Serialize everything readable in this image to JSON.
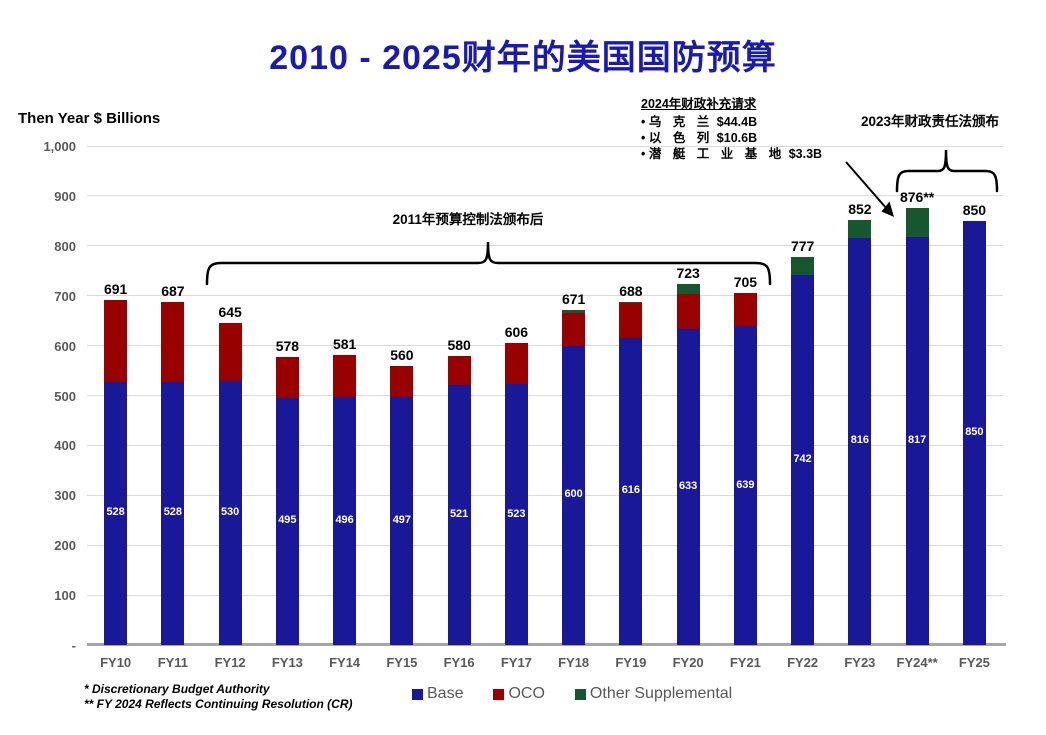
{
  "title": "2010 - 2025财年的美国国防预算",
  "y_axis_title": "Then Year $ Billions",
  "colors": {
    "title": "#1a1ab2",
    "base": "#181899",
    "oco": "#990000",
    "supplemental": "#17572f",
    "grid": "#d9d9d9",
    "axis": "#a6a6a6",
    "tick_text": "#595959"
  },
  "annotations": {
    "supplemental_2024": {
      "title": "2024年财政补充请求",
      "bullet": "•",
      "items": [
        {
          "label": "乌 克 兰",
          "value": "$44.4B"
        },
        {
          "label": "以 色 列",
          "value": "$10.6B"
        },
        {
          "label": "潜 艇 工 业 基 地",
          "value": "$3.3B"
        }
      ]
    },
    "fra_2023": "2023年财政责任法颁布",
    "bca_2011": "2011年预算控制法颁布后"
  },
  "footnotes": [
    "* Discretionary Budget Authority",
    "** FY 2024 Reflects Continuing Resolution (CR)"
  ],
  "legend": [
    {
      "label": "Base",
      "color": "#181899"
    },
    {
      "label": "OCO",
      "color": "#990000"
    },
    {
      "label": "Other Supplemental",
      "color": "#17572f"
    }
  ],
  "chart_data": {
    "type": "bar",
    "stacked": true,
    "title": "2010 - 2025财年的美国国防预算",
    "ylabel": "Then Year $ Billions",
    "ylim": [
      0,
      1000
    ],
    "grid": true,
    "legend_position": "bottom",
    "categories": [
      "FY10",
      "FY11",
      "FY12",
      "FY13",
      "FY14",
      "FY15",
      "FY16",
      "FY17",
      "FY18",
      "FY19",
      "FY20",
      "FY21",
      "FY22",
      "FY23",
      "FY24**",
      "FY25"
    ],
    "series": [
      {
        "name": "Base",
        "color": "#181899",
        "values": [
          528,
          528,
          530,
          495,
          496,
          497,
          521,
          523,
          600,
          616,
          633,
          639,
          742,
          816,
          817,
          850
        ]
      },
      {
        "name": "OCO",
        "color": "#990000",
        "values": [
          163,
          159,
          115,
          83,
          85,
          63,
          59,
          83,
          65,
          69,
          71,
          66,
          0,
          0,
          0,
          0
        ]
      },
      {
        "name": "Other Supplemental",
        "color": "#17572f",
        "values": [
          0,
          0,
          0,
          0,
          0,
          0,
          0,
          0,
          6,
          3,
          19,
          0,
          35,
          36,
          59,
          0
        ]
      }
    ],
    "total_labels": [
      "691",
      "687",
      "645",
      "578",
      "581",
      "560",
      "580",
      "606",
      "671",
      "688",
      "723",
      "705",
      "777",
      "852",
      "876**",
      "850"
    ],
    "base_labels": [
      "528",
      "528",
      "530",
      "495",
      "496",
      "497",
      "521",
      "523",
      "600",
      "616",
      "633",
      "639",
      "742",
      "816",
      "817",
      "850"
    ],
    "y_ticks": [
      {
        "v": 1000,
        "label": "1,000"
      },
      {
        "v": 900,
        "label": "900"
      },
      {
        "v": 800,
        "label": "800"
      },
      {
        "v": 700,
        "label": "700"
      },
      {
        "v": 600,
        "label": "600"
      },
      {
        "v": 500,
        "label": "500"
      },
      {
        "v": 400,
        "label": "400"
      },
      {
        "v": 300,
        "label": "300"
      },
      {
        "v": 200,
        "label": "200"
      },
      {
        "v": 100,
        "label": "100"
      },
      {
        "v": 0,
        "label": "-"
      }
    ]
  }
}
